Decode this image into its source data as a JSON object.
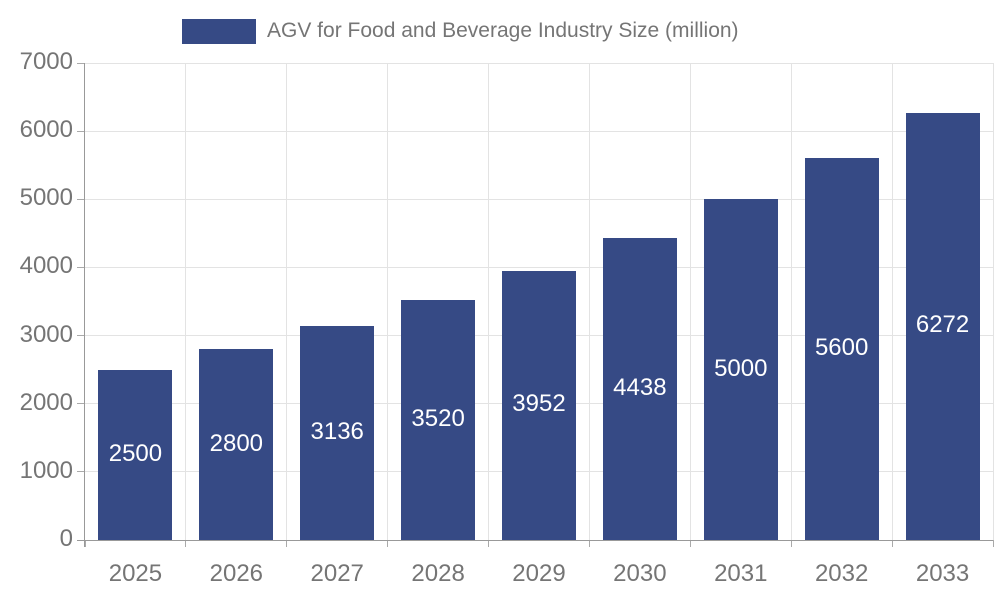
{
  "legend": {
    "label": "AGV for Food and Beverage Industry Size (million)"
  },
  "chart_data": {
    "type": "bar",
    "title": "AGV for Food and Beverage Industry Size (million)",
    "categories": [
      "2025",
      "2026",
      "2027",
      "2028",
      "2029",
      "2030",
      "2031",
      "2032",
      "2033"
    ],
    "values": [
      2500,
      2800,
      3136,
      3520,
      3952,
      4438,
      5000,
      5600,
      6272
    ],
    "xlabel": "",
    "ylabel": "",
    "ylim": [
      0,
      7000
    ],
    "ytick_interval": 1000,
    "yticks": [
      0,
      1000,
      2000,
      3000,
      4000,
      5000,
      6000,
      7000
    ],
    "grid": true,
    "legend_position": "top",
    "value_labels": "inside-center",
    "colors": {
      "bar": "#364a85",
      "bar_label_text": "#ffffff",
      "axis_text": "#757575",
      "legend_text": "#757575",
      "grid_line": "#e3e3e3",
      "axis_line": "#999999",
      "tick_mark": "#aaaaaa",
      "background": "#ffffff"
    }
  }
}
